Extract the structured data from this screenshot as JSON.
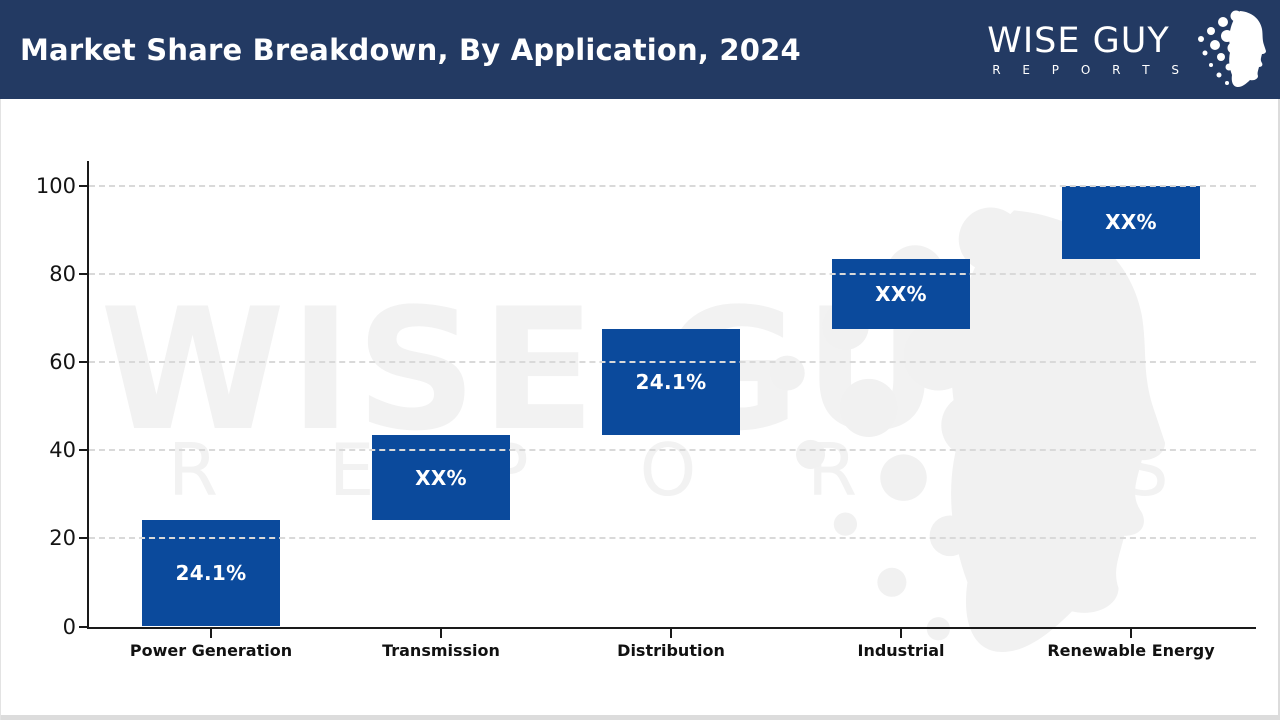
{
  "header": {
    "title": "Market Share Breakdown, By Application, 2024",
    "bg_color": "#233A63",
    "logo": {
      "line1": "WISE GUY",
      "line2": "R E P O R T S",
      "face_icon": "dotted-head-profile"
    }
  },
  "watermark": {
    "line1": "WISE GUY",
    "line2": "R E P O R T S"
  },
  "chart_data": {
    "type": "bar",
    "subtype": "waterfall",
    "title": "Market Share Breakdown, By Application, 2024",
    "xlabel": "",
    "ylabel": "",
    "categories": [
      "Power Generation",
      "Transmission",
      "Distribution",
      "Industrial",
      "Renewable Energy"
    ],
    "series": [
      {
        "name": "Market Share",
        "segments": [
          {
            "category": "Power Generation",
            "start": 0,
            "end": 24.1,
            "label": "24.1%"
          },
          {
            "category": "Transmission",
            "start": 24.1,
            "end": 43.4,
            "label": "XX%"
          },
          {
            "category": "Distribution",
            "start": 43.4,
            "end": 67.5,
            "label": "24.1%"
          },
          {
            "category": "Industrial",
            "start": 67.5,
            "end": 83.3,
            "label": "XX%"
          },
          {
            "category": "Renewable Energy",
            "start": 83.3,
            "end": 100,
            "label": "XX%"
          }
        ]
      }
    ],
    "ylim": [
      0,
      100
    ],
    "yticks": [
      0,
      20,
      40,
      60,
      80,
      100
    ],
    "grid": "horizontal-dashed",
    "legend": "none",
    "bar_color": "#0B4A9C",
    "bar_label_color": "#ffffff",
    "axis_color": "#1a1a1a"
  }
}
